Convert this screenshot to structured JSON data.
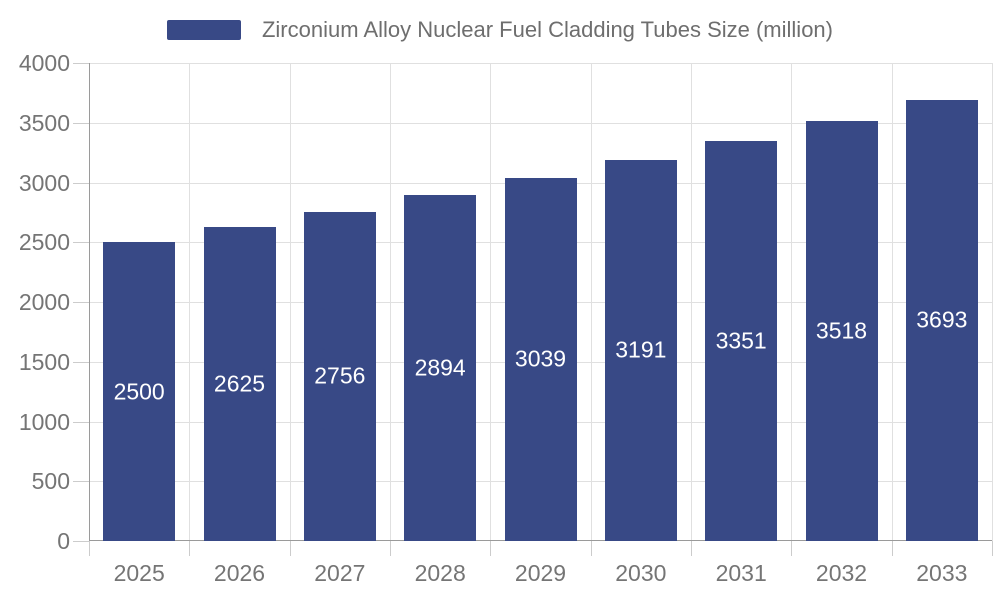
{
  "chart": {
    "legend": {
      "label": "Zirconium Alloy Nuclear Fuel Cladding Tubes Size (million)"
    },
    "colors": {
      "bar": "#384986",
      "bar_label": "#ffffff",
      "grid": "#e0e0e0",
      "axis_line": "#9a9a9a",
      "tick_line": "#cccccc",
      "axis_label": "#757575",
      "legend_text": "#6e6e6e",
      "background": "#ffffff"
    }
  },
  "chart_data": {
    "type": "bar",
    "title": "Zirconium Alloy Nuclear Fuel Cladding Tubes Size (million)",
    "categories": [
      "2025",
      "2026",
      "2027",
      "2028",
      "2029",
      "2030",
      "2031",
      "2032",
      "2033"
    ],
    "values": [
      2500,
      2625,
      2756,
      2894,
      3039,
      3191,
      3351,
      3518,
      3693
    ],
    "xlabel": "",
    "ylabel": "",
    "ylim": [
      0,
      4000
    ],
    "ytick_step": 500,
    "grid": true,
    "legend_position": "top-center",
    "bar_label_position": "inside-center"
  }
}
